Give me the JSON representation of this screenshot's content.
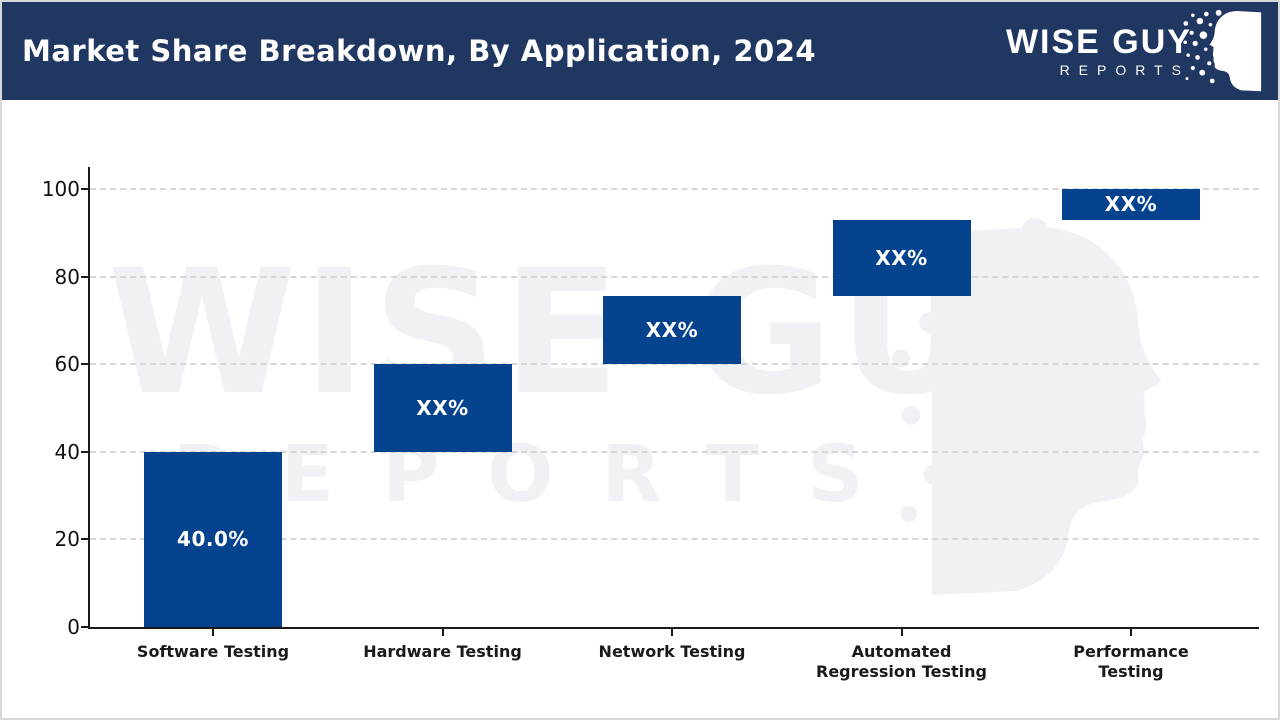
{
  "header": {
    "title": "Market Share Breakdown, By Application, 2024",
    "logo": {
      "line1": "WISE GUY",
      "line2": "REPORTS"
    }
  },
  "watermark": {
    "line1": "WISE GUY",
    "line2": "REPORTS"
  },
  "colors": {
    "header_bg": "#203761",
    "bar": "#05438f",
    "grid": "#d6d6d6",
    "axis": "#1a1a1a",
    "watermark": "#f0f1f4"
  },
  "chart_data": {
    "type": "bar",
    "subtype": "stacked-waterfall",
    "title": "Market Share Breakdown, By Application, 2024",
    "xlabel": "",
    "ylabel": "",
    "ylim": [
      0,
      105
    ],
    "yticks": [
      0,
      20,
      40,
      60,
      80,
      100
    ],
    "grid": "dashed-horizontal",
    "legend": "none",
    "categories": [
      "Software Testing",
      "Hardware Testing",
      "Network Testing",
      "Automated Regression Testing",
      "Performance Testing"
    ],
    "category_display_lines": [
      [
        "Software Testing"
      ],
      [
        "Hardware Testing"
      ],
      [
        "Network Testing"
      ],
      [
        "Automated",
        "Regression Testing"
      ],
      [
        "Performance",
        "Testing"
      ]
    ],
    "segments": [
      {
        "category": "Software Testing",
        "start": 0,
        "end": 40,
        "value": 40.0,
        "label": "40.0%"
      },
      {
        "category": "Hardware Testing",
        "start": 40,
        "end": 60,
        "value": 20.0,
        "label": "XX%"
      },
      {
        "category": "Network Testing",
        "start": 60,
        "end": 75.5,
        "value": 15.5,
        "label": "XX%"
      },
      {
        "category": "Automated Regression Testing",
        "start": 75.5,
        "end": 93,
        "value": 17.5,
        "label": "XX%"
      },
      {
        "category": "Performance Testing",
        "start": 93,
        "end": 100,
        "value": 7.0,
        "label": "XX%"
      }
    ]
  }
}
